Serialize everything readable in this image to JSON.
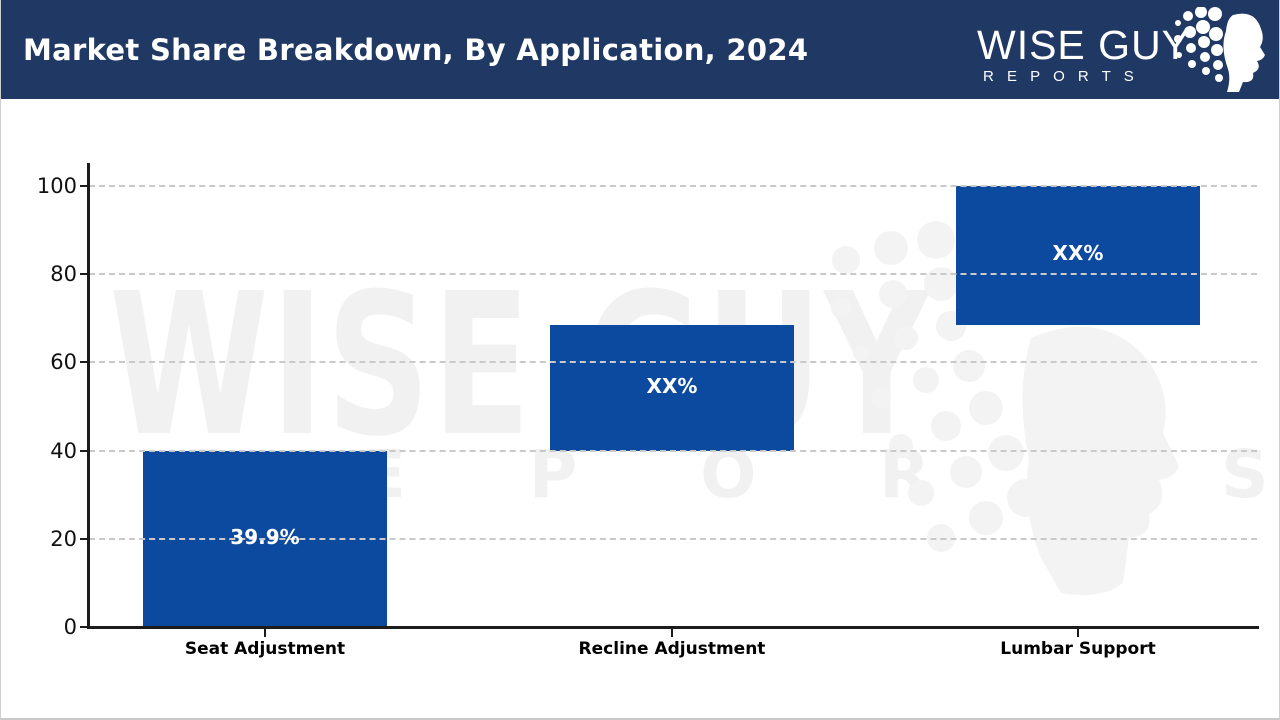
{
  "header": {
    "title": "Market Share Breakdown, By Application, 2024",
    "logo": {
      "primary": "WISE GUY",
      "secondary": "R E P O R T S"
    }
  },
  "watermark": {
    "primary": "WISE GUY",
    "secondary": "R E P O R T S"
  },
  "chart_data": {
    "type": "bar",
    "variant": "waterfall-stacked-percentage",
    "title": "Market Share Breakdown, By Application, 2024",
    "categories": [
      "Seat Adjustment",
      "Recline Adjustment",
      "Lumbar Support"
    ],
    "segments": [
      {
        "category": "Seat Adjustment",
        "start": 0,
        "end": 39.9,
        "label": "39.9%"
      },
      {
        "category": "Recline Adjustment",
        "start": 39.9,
        "end": 68.5,
        "label": "XX%"
      },
      {
        "category": "Lumbar Support",
        "start": 68.5,
        "end": 100,
        "label": "XX%"
      }
    ],
    "xlabel": "",
    "ylabel": "",
    "ylim": [
      0,
      100
    ],
    "yticks": [
      0,
      20,
      40,
      60,
      80,
      100
    ],
    "grid": "horizontal-dashed",
    "legend": "none",
    "colors": {
      "bar": "#0b4a9f",
      "bar_label": "#ffffff",
      "axis": "#1c1c1c",
      "grid": "#c9c9c9",
      "header_bg": "#1f3864",
      "watermark": "#f1f1f2"
    }
  }
}
